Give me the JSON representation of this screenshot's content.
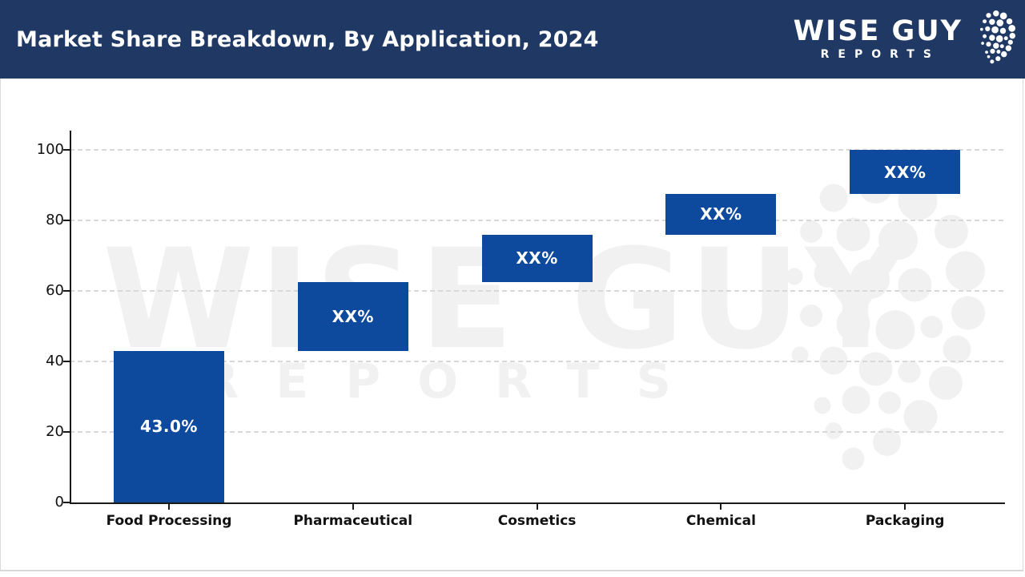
{
  "header": {
    "title": "Market Share Breakdown, By Application, 2024",
    "logo": {
      "line1": "WISE GUY",
      "line2": "REPORTS"
    }
  },
  "watermark": {
    "line1": "WISE GUY",
    "line2": "REPORTS"
  },
  "colors": {
    "header_bg": "#1f3864",
    "bar": "#0d4a9e",
    "grid": "#d8d8d8",
    "axis": "#1a1a1a",
    "bar_label": "#ffffff",
    "watermark": "#f1f1f1"
  },
  "chart_data": {
    "type": "bar",
    "subtype": "waterfall-floating-bars",
    "title": "Market Share Breakdown, By Application, 2024",
    "categories": [
      "Food Processing",
      "Pharmaceutical",
      "Cosmetics",
      "Chemical",
      "Packaging"
    ],
    "segments": [
      {
        "category": "Food Processing",
        "start": 0,
        "end": 43,
        "label": "43.0%"
      },
      {
        "category": "Pharmaceutical",
        "start": 43,
        "end": 62.5,
        "label": "XX%"
      },
      {
        "category": "Cosmetics",
        "start": 62.5,
        "end": 76,
        "label": "XX%"
      },
      {
        "category": "Chemical",
        "start": 76,
        "end": 87.5,
        "label": "XX%"
      },
      {
        "category": "Packaging",
        "start": 87.5,
        "end": 100,
        "label": "XX%"
      }
    ],
    "yticks": [
      0,
      20,
      40,
      60,
      80,
      100
    ],
    "ylim": [
      0,
      105
    ],
    "xlabel": "",
    "ylabel": "",
    "grid": "horizontal-dashed",
    "legend": "none"
  }
}
